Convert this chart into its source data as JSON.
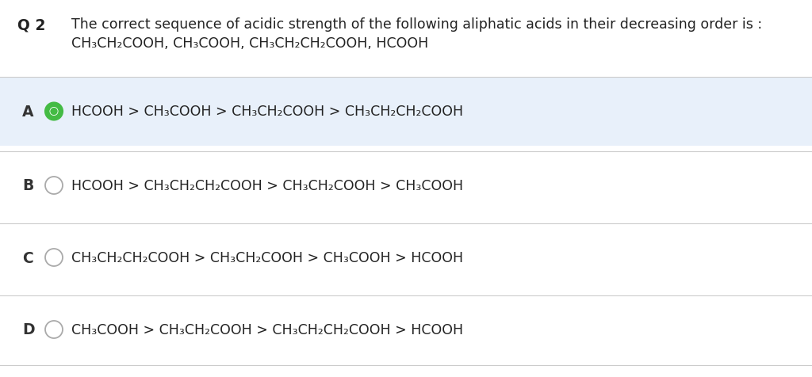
{
  "bg_color": "#ffffff",
  "question_label": "Q 2",
  "question_text1": "The correct sequence of acidic strength of the following aliphatic acids in their decreasing order is :",
  "question_text2": "CH₃CH₂COOH, CH₃COOH, CH₃CH₂CH₂COOH, HCOOH",
  "options": [
    {
      "label": "A",
      "text": "HCOOH > CH₃COOH > CH₃CH₂COOH > CH₃CH₂CH₂COOH",
      "correct": true,
      "bg_color": "#e8f0fa"
    },
    {
      "label": "B",
      "text": "HCOOH > CH₃CH₂CH₂COOH > CH₃CH₂COOH > CH₃COOH",
      "correct": false,
      "bg_color": "#ffffff"
    },
    {
      "label": "C",
      "text": "CH₃CH₂CH₂COOH > CH₃CH₂COOH > CH₃COOH > HCOOH",
      "correct": false,
      "bg_color": "#ffffff"
    },
    {
      "label": "D",
      "text": "CH₃COOH > CH₃CH₂COOH > CH₃CH₂CH₂COOH > HCOOH",
      "correct": false,
      "bg_color": "#ffffff"
    }
  ],
  "divider_color": "#cccccc",
  "text_color": "#222222",
  "label_color": "#333333",
  "correct_circle_outer": "#44bb44",
  "correct_circle_inner": "#ffffff",
  "correct_circle_dot": "#44bb44",
  "empty_circle_color": "#aaaaaa",
  "font_size_question": 12.5,
  "font_size_option": 12.5,
  "font_size_label": 13.5
}
